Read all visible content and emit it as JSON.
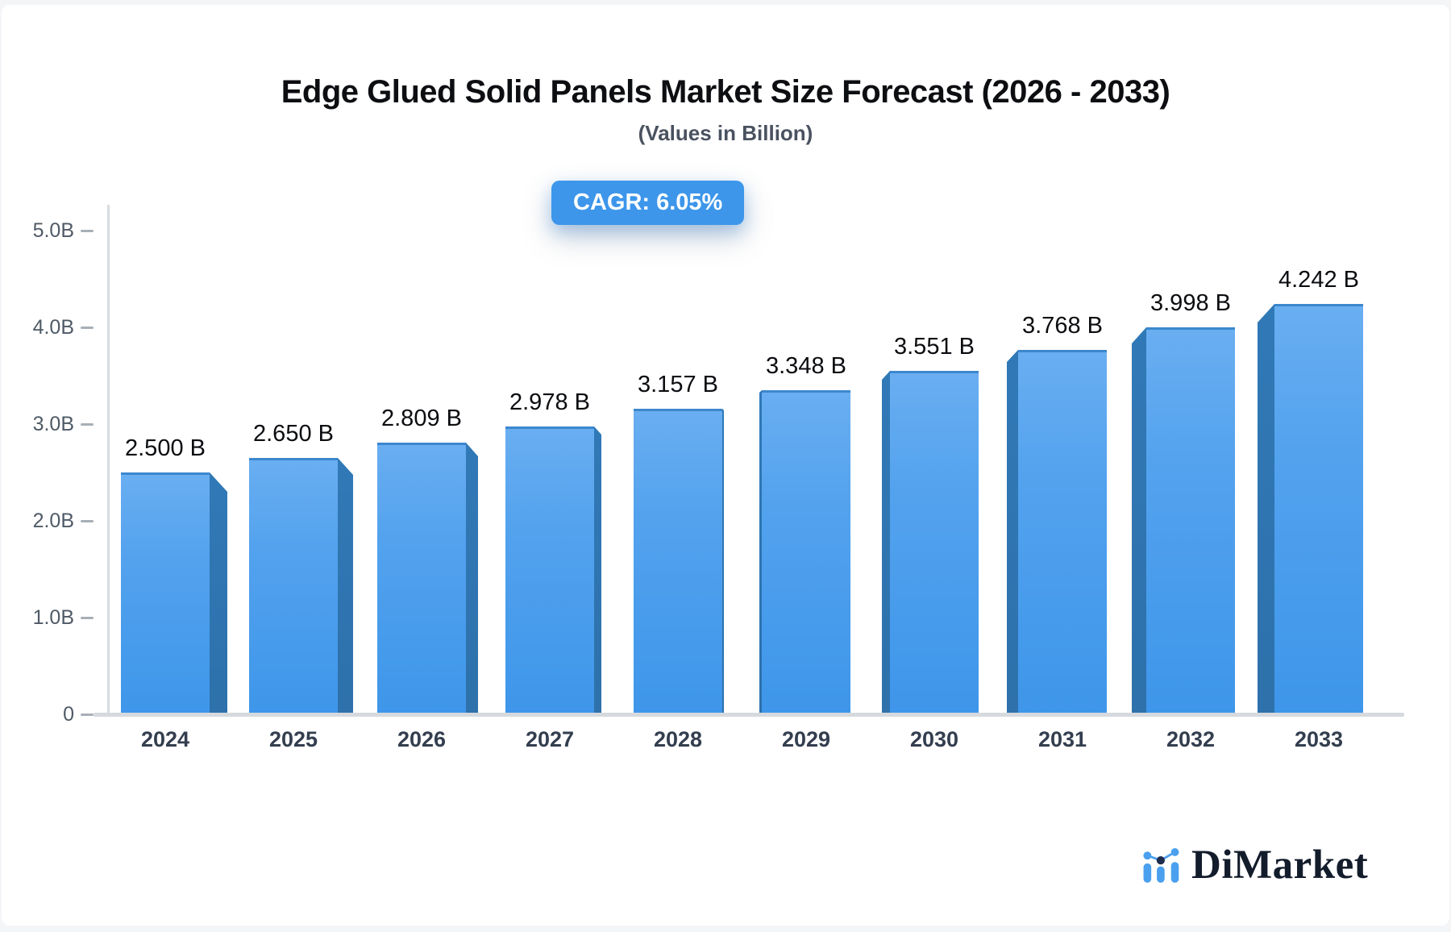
{
  "chart_data": {
    "type": "bar",
    "title": "Edge Glued Solid Panels Market Size Forecast (2026 - 2033)",
    "subtitle": "(Values in Billion)",
    "cagr_label": "CAGR: 6.05%",
    "categories": [
      "2024",
      "2025",
      "2026",
      "2027",
      "2028",
      "2029",
      "2030",
      "2031",
      "2032",
      "2033"
    ],
    "values": [
      2.5,
      2.65,
      2.809,
      2.978,
      3.157,
      3.348,
      3.551,
      3.768,
      3.998,
      4.242
    ],
    "value_labels": [
      "2.500 B",
      "2.650 B",
      "2.809 B",
      "2.978 B",
      "3.157 B",
      "3.348 B",
      "3.551 B",
      "3.768 B",
      "3.998 B",
      "4.242 B"
    ],
    "xlabel": "",
    "ylabel": "",
    "ylim": [
      0,
      5
    ],
    "ytick_values": [
      5,
      4,
      3,
      2,
      1,
      0
    ],
    "ytick_labels": [
      "5.0B",
      "4.0B",
      "3.0B",
      "2.0B",
      "1.0B",
      "0"
    ],
    "grid": false,
    "legend": false,
    "bar_style": {
      "face_top_color": "#69aef1",
      "face_bottom_color": "#3e96ea",
      "side_color": "#2e73b0",
      "top_edge_color": "#3c87ce",
      "threed_depths": [
        22,
        19,
        15,
        9,
        2,
        -3,
        -10,
        -14,
        -18,
        -21
      ]
    },
    "accent_color": "#3d96ea"
  },
  "branding": {
    "name": "DiMarket",
    "icon": "bar-chart-logo-icon",
    "icon_color": "#4aa0ee",
    "icon_dark_dot_color": "#1d2c4c",
    "text_color": "#131c2b"
  }
}
